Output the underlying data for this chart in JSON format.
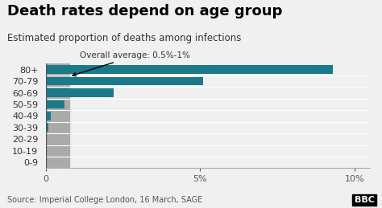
{
  "title": "Death rates depend on age group",
  "subtitle": "Estimated proportion of deaths among infections",
  "source": "Source: Imperial College London, 16 March, SAGE",
  "categories": [
    "0-9",
    "10-19",
    "20-29",
    "30-39",
    "40-49",
    "50-59",
    "60-69",
    "70-79",
    "80+"
  ],
  "values": [
    0.0,
    0.0,
    0.03,
    0.08,
    0.15,
    0.6,
    2.2,
    5.1,
    9.3
  ],
  "bar_color": "#1a7a8a",
  "overall_avg_color": "#aaaaaa",
  "overall_avg_value": 0.75,
  "overall_avg_label": "Overall average: 0.5%-1%",
  "xlim": [
    0,
    10.5
  ],
  "xticks": [
    0,
    5,
    10
  ],
  "xticklabels": [
    "0",
    "5%",
    "10%"
  ],
  "background_color": "#f0f0f0",
  "title_fontsize": 13,
  "subtitle_fontsize": 8.5,
  "tick_fontsize": 8,
  "source_fontsize": 7,
  "bar_height": 0.75
}
